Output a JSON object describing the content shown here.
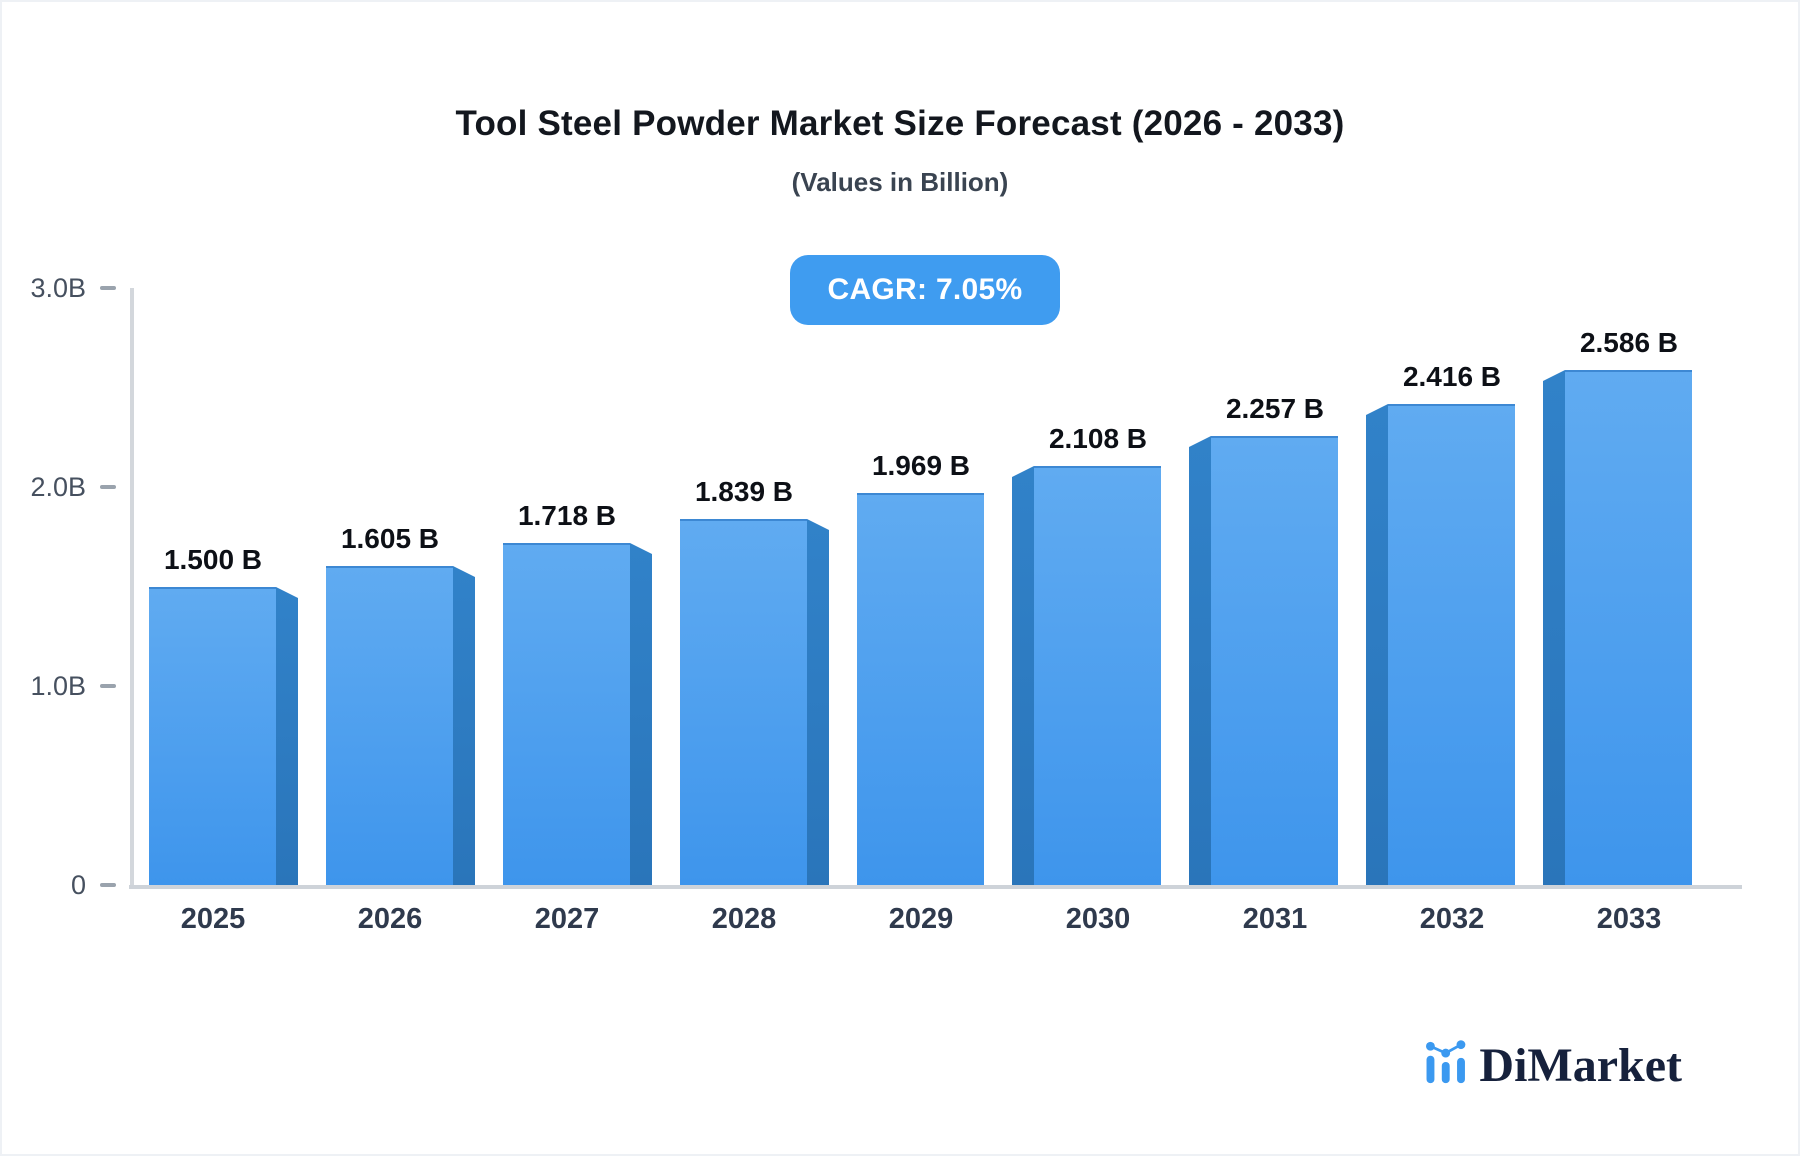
{
  "chart_data": {
    "type": "bar",
    "title": "Tool Steel Powder Market Size Forecast (2026 - 2033)",
    "subtitle": "(Values in Billion)",
    "annotation": "CAGR: 7.05%",
    "unit": "Billion",
    "categories": [
      "2025",
      "2026",
      "2027",
      "2028",
      "2029",
      "2030",
      "2031",
      "2032",
      "2033"
    ],
    "values": [
      1.5,
      1.605,
      1.718,
      1.839,
      1.969,
      2.108,
      2.257,
      2.416,
      2.586
    ],
    "value_labels": [
      "1.500 B",
      "1.605 B",
      "1.718 B",
      "1.839 B",
      "1.969 B",
      "2.108 B",
      "2.257 B",
      "2.416 B",
      "2.586 B"
    ],
    "ylim": [
      0,
      3.0
    ],
    "yticks": [
      {
        "label": "0",
        "value": 0
      },
      {
        "label": "1.0B",
        "value": 1.0
      },
      {
        "label": "2.0B",
        "value": 2.0
      },
      {
        "label": "3.0B",
        "value": 3.0
      }
    ],
    "grid": false,
    "legend_position": "none",
    "bar_style": "3d-perspective-toward-center"
  },
  "footer": {
    "brand": "DiMarket"
  },
  "colors": {
    "badge_bg": "#3f9cf0",
    "bar_front_top": "#60abf1",
    "bar_front_bottom": "#3e95ec",
    "bar_front_edge": "#3d88d3",
    "bar_side_top": "#3182c9",
    "bar_side_bottom": "#2a75ba",
    "logo_blue": "#3b99f0",
    "logo_navy": "#16213c",
    "axis_gray": "#ced3d9",
    "tick_text": "#46505f"
  }
}
